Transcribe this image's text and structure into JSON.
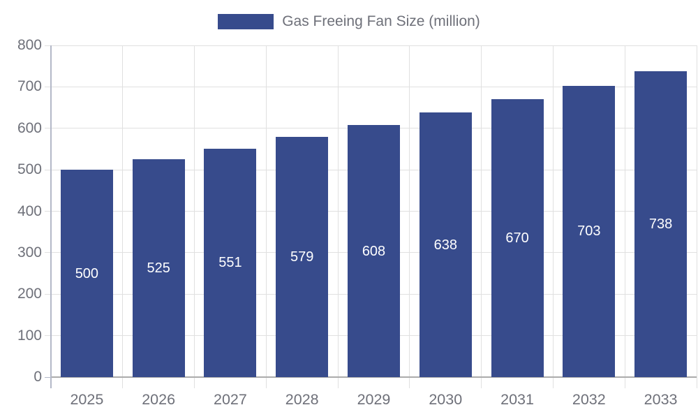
{
  "legend": {
    "label": "Gas Freeing Fan Size (million)"
  },
  "chart_data": {
    "type": "bar",
    "title": "Gas Freeing Fan Size (million)",
    "categories": [
      "2025",
      "2026",
      "2027",
      "2028",
      "2029",
      "2030",
      "2031",
      "2032",
      "2033"
    ],
    "values": [
      500,
      525,
      551,
      579,
      608,
      638,
      670,
      703,
      738
    ],
    "series": [
      {
        "name": "Gas Freeing Fan Size (million)",
        "values": [
          500,
          525,
          551,
          579,
          608,
          638,
          670,
          703,
          738
        ]
      }
    ],
    "xlabel": "",
    "ylabel": "",
    "ylim": [
      0,
      800
    ],
    "ytick_interval": 100,
    "yticks": [
      0,
      100,
      200,
      300,
      400,
      500,
      600,
      700,
      800
    ],
    "grid": true,
    "legend_position": "top-center",
    "value_labels": "inside-center-white",
    "colors": {
      "bar": "#374B8C",
      "bar_value_label": "#FFFFFF",
      "axis_text": "#6E7079",
      "legend_text": "#6E7079",
      "gridline": "#E0E0E0",
      "x_axis_line": "#ABABAB",
      "y_axis_line": "#B3B8C8",
      "background": "#FFFFFF"
    }
  }
}
